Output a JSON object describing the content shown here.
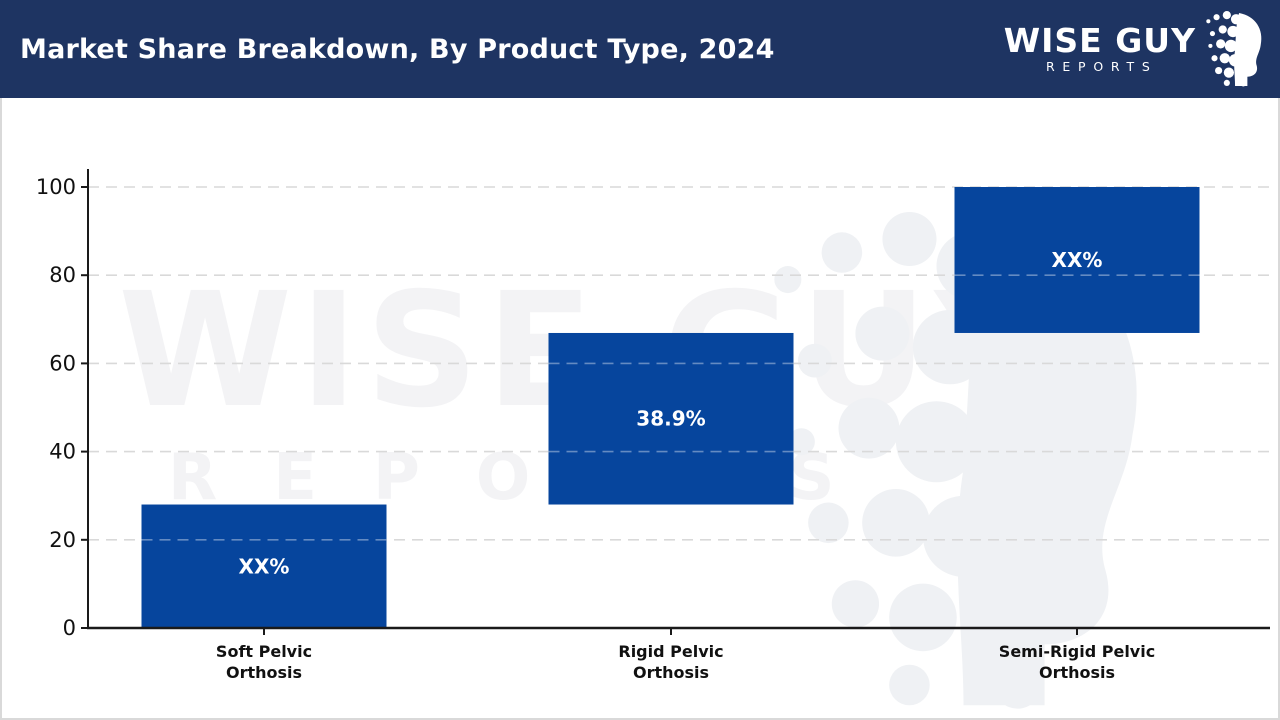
{
  "header": {
    "title": "Market Share Breakdown, By Product Type, 2024",
    "bg_color": "#1e3462",
    "logo": {
      "line1": "WISE GUY",
      "line2": "REPORTS"
    }
  },
  "watermark": {
    "line1": "WISE GUY",
    "line2": "REPORTS"
  },
  "chart_data": {
    "type": "bar",
    "subtype": "waterfall-stacked-percentage",
    "title": "Market Share Breakdown, By Product Type, 2024",
    "categories": [
      "Soft Pelvic Orthosis",
      "Rigid Pelvic Orthosis",
      "Semi-Rigid Pelvic Orthosis"
    ],
    "category_lines": [
      [
        "Soft Pelvic",
        "Orthosis"
      ],
      [
        "Rigid Pelvic",
        "Orthosis"
      ],
      [
        "Semi-Rigid Pelvic",
        "Orthosis"
      ]
    ],
    "segments": [
      {
        "category": "Soft Pelvic Orthosis",
        "start": 0,
        "end": 28,
        "label": "XX%"
      },
      {
        "category": "Rigid Pelvic Orthosis",
        "start": 28,
        "end": 66.9,
        "label": "38.9%"
      },
      {
        "category": "Semi-Rigid Pelvic Orthosis",
        "start": 66.9,
        "end": 100,
        "label": "XX%"
      }
    ],
    "xlabel": "",
    "ylabel": "",
    "yticks": [
      0,
      20,
      40,
      60,
      80,
      100
    ],
    "ylim": [
      0,
      104
    ],
    "grid": "horizontal-dashed",
    "legend": "none",
    "colors": {
      "bar": "#06459d",
      "grid": "#d9d9d9",
      "axis": "#1a1a1a",
      "tick_text": "#111111",
      "label_on_bar": "#ffffff"
    }
  }
}
